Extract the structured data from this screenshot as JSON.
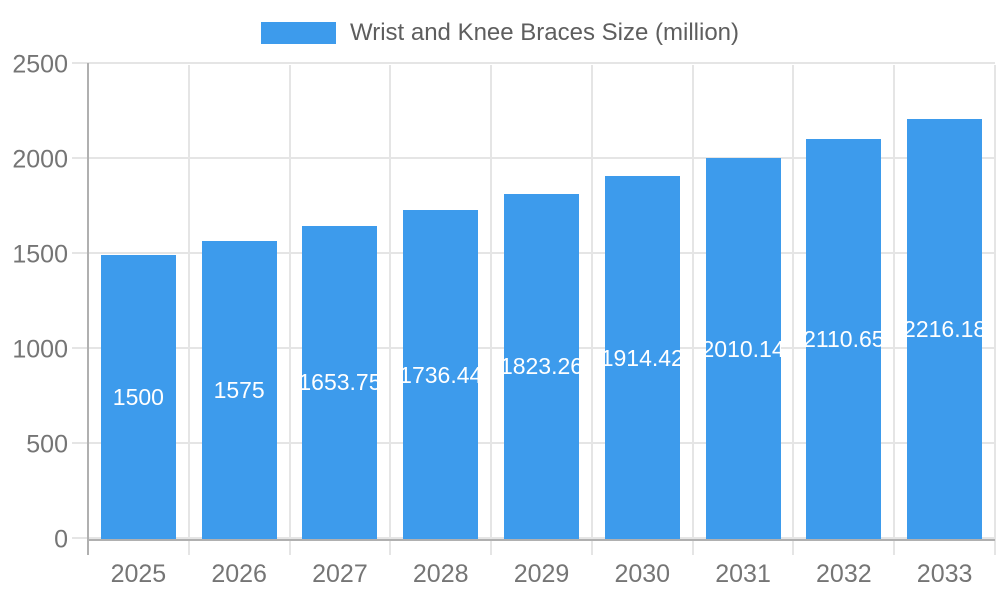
{
  "chart": {
    "legend_label": "Wrist and Knee Braces Size (million)",
    "colors": {
      "bar": "#3d9bec",
      "grid": "#e5e5e5",
      "axis": "#b0b0b0",
      "axis_text": "#757575",
      "title_text": "#5e5e5e",
      "bar_label": "#ffffff"
    }
  },
  "chart_data": {
    "type": "bar",
    "title": "Wrist and Knee Braces Size (million)",
    "categories": [
      "2025",
      "2026",
      "2027",
      "2028",
      "2029",
      "2030",
      "2031",
      "2032",
      "2033"
    ],
    "values": [
      1500,
      1575,
      1653.75,
      1736.44,
      1823.26,
      1914.42,
      2010.14,
      2110.65,
      2216.18
    ],
    "value_labels": [
      "1500",
      "1575",
      "1653.75",
      "1736.44",
      "1823.26",
      "1914.42",
      "2010.14",
      "2110.65",
      "2216.18"
    ],
    "xlabel": "",
    "ylabel": "",
    "ylim": [
      0,
      2500
    ],
    "y_ticks": [
      0,
      500,
      1000,
      1500,
      2000,
      2500
    ],
    "grid": true,
    "legend_position": "top",
    "value_label_position": "inside-center"
  }
}
